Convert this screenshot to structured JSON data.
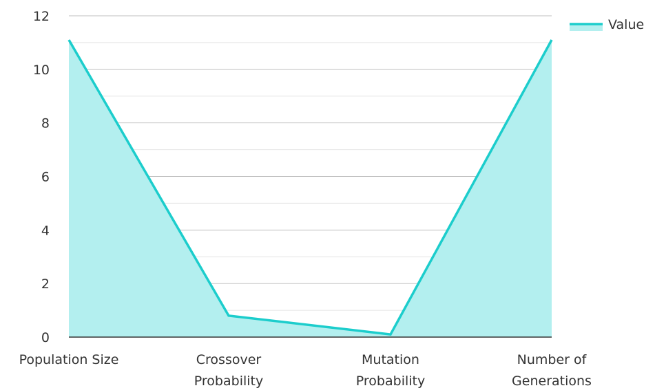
{
  "chart_data": {
    "type": "area",
    "categories": [
      [
        "Population Size"
      ],
      [
        "Crossover",
        "Probability"
      ],
      [
        "Mutation",
        "Probability"
      ],
      [
        "Number of",
        "Generations"
      ]
    ],
    "series": [
      {
        "name": "Value",
        "values": [
          11.1,
          0.8,
          0.1,
          11.1
        ]
      }
    ],
    "ylim": [
      0,
      12
    ],
    "yticks": [
      "0",
      "2",
      "4",
      "6",
      "8",
      "10",
      "12"
    ],
    "grid": true,
    "legend": "top-right",
    "colors": {
      "line": "#1ccdcc",
      "fill": "#b3efef",
      "grid_major": "#bfbfbf",
      "grid_minor": "#e3e3e3",
      "axis": "#333333"
    }
  }
}
